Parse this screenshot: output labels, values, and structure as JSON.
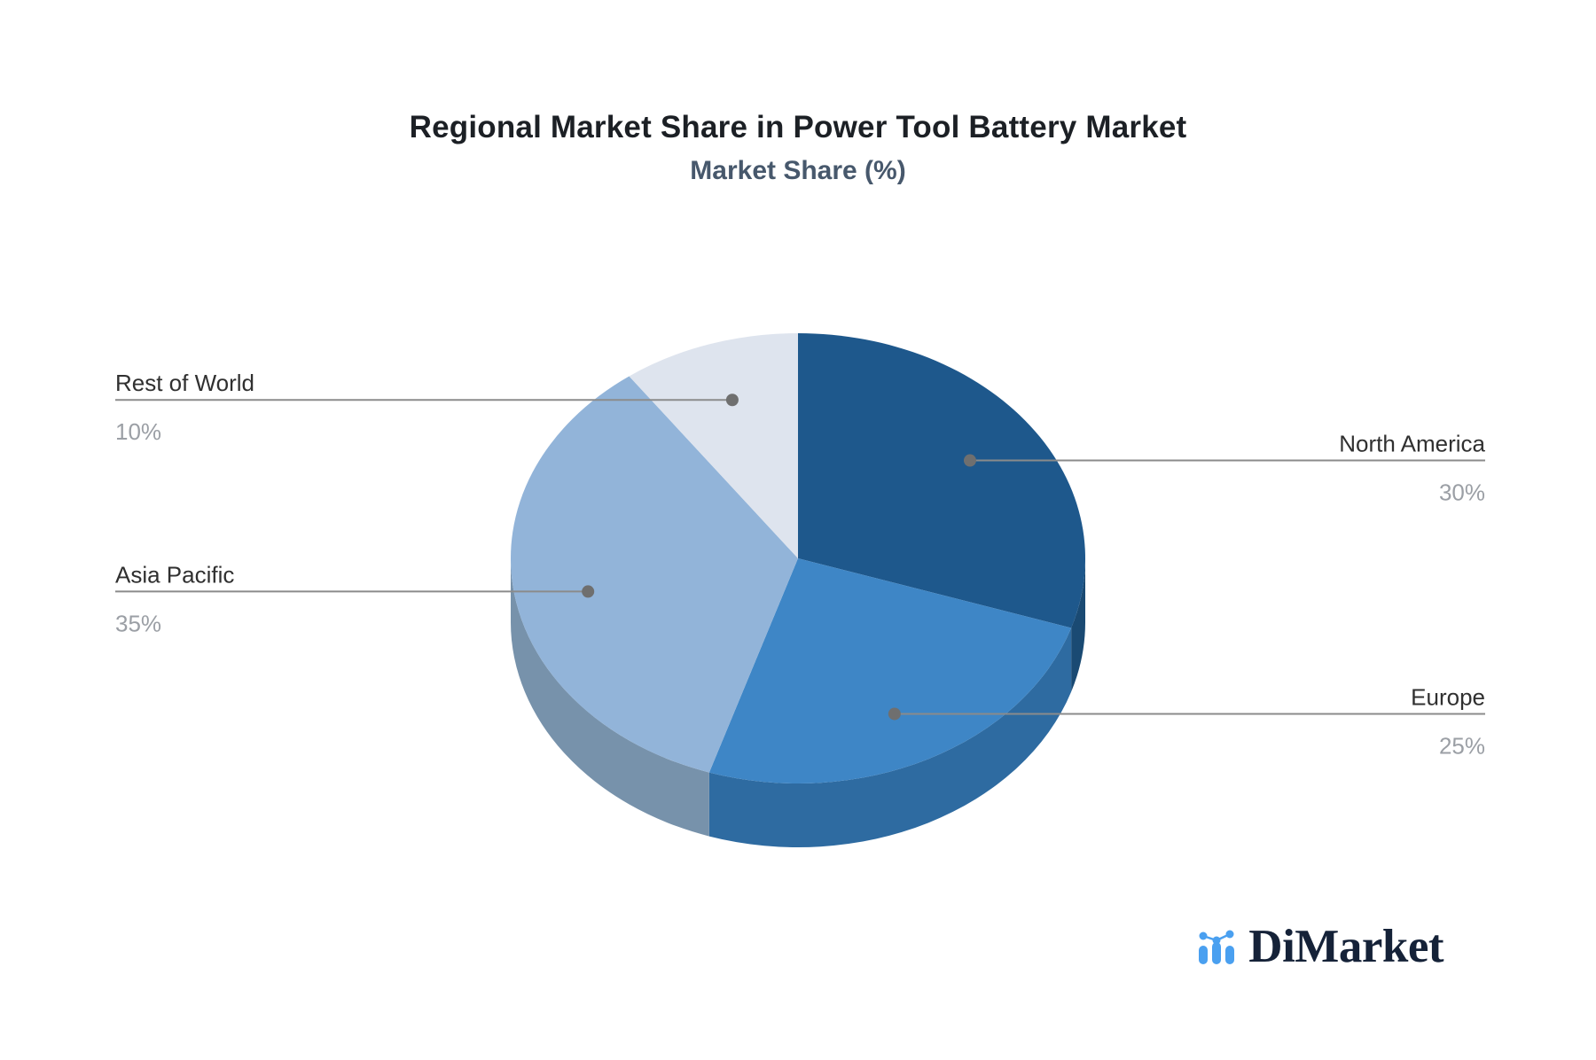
{
  "title": "Regional Market Share in Power Tool Battery Market",
  "subtitle": "Market Share (%)",
  "chart_data": {
    "type": "pie",
    "title": "Regional Market Share in Power Tool Battery Market",
    "subtitle": "Market Share (%)",
    "unit": "%",
    "style": "3d-pie-with-callout-labels",
    "start_angle_deg": 0,
    "direction": "clockwise",
    "legend_position": "callout-labels",
    "slices": [
      {
        "label": "North America",
        "value": 30,
        "display": "30%",
        "color": "#1e588c",
        "side_color": "#1a4a73",
        "callout": "right"
      },
      {
        "label": "Europe",
        "value": 25,
        "display": "25%",
        "color": "#3e86c6",
        "side_color": "#2e6ba1",
        "callout": "right"
      },
      {
        "label": "Asia Pacific",
        "value": 35,
        "display": "35%",
        "color": "#92b4d9",
        "side_color": "#7792ab",
        "callout": "left"
      },
      {
        "label": "Rest of World",
        "value": 10,
        "display": "10%",
        "color": "#dee4ee",
        "side_color": "#b9c6d8",
        "callout": "left"
      }
    ],
    "callout_style": {
      "line_color": "#8b8b8b",
      "dot_color": "#6f6f6f",
      "label_color": "#303030",
      "value_color": "#9b9fa5"
    }
  },
  "brand": {
    "name": "DiMarket",
    "icon": "bar-chart-trend-icon",
    "icon_color": "#4aa0f0",
    "text_color": "#152238"
  }
}
